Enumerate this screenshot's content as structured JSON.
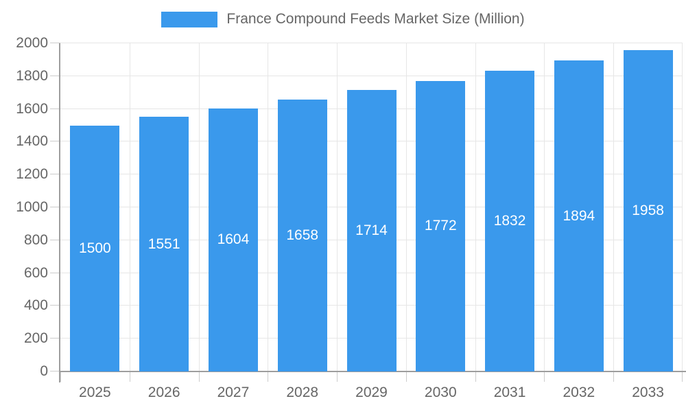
{
  "legend": {
    "label": "France Compound Feeds Market Size (Million)"
  },
  "chart_data": {
    "type": "bar",
    "title": "France Compound Feeds Market Size (Million)",
    "categories": [
      "2025",
      "2026",
      "2027",
      "2028",
      "2029",
      "2030",
      "2031",
      "2032",
      "2033"
    ],
    "values": [
      1500,
      1551,
      1604,
      1658,
      1714,
      1772,
      1832,
      1894,
      1958
    ],
    "series": [
      {
        "name": "France Compound Feeds Market Size (Million)",
        "values": [
          1500,
          1551,
          1604,
          1658,
          1714,
          1772,
          1832,
          1894,
          1958
        ]
      }
    ],
    "xlabel": "",
    "ylabel": "",
    "ylim": [
      0,
      2000
    ],
    "y_ticks": [
      0,
      200,
      400,
      600,
      800,
      1000,
      1200,
      1400,
      1600,
      1800,
      2000
    ],
    "grid": true,
    "legend_position": "top-center",
    "bar_label_position": "inside-center",
    "colors": {
      "bar": "#3A99EC",
      "bar_label": "#FFFFFF",
      "axis_line": "#9E9E9E",
      "tick_line": "#CCCCCC",
      "grid_line": "#E6E6E6",
      "axis_text": "#666666",
      "legend_text": "#666666",
      "background": "#FFFFFF"
    }
  }
}
